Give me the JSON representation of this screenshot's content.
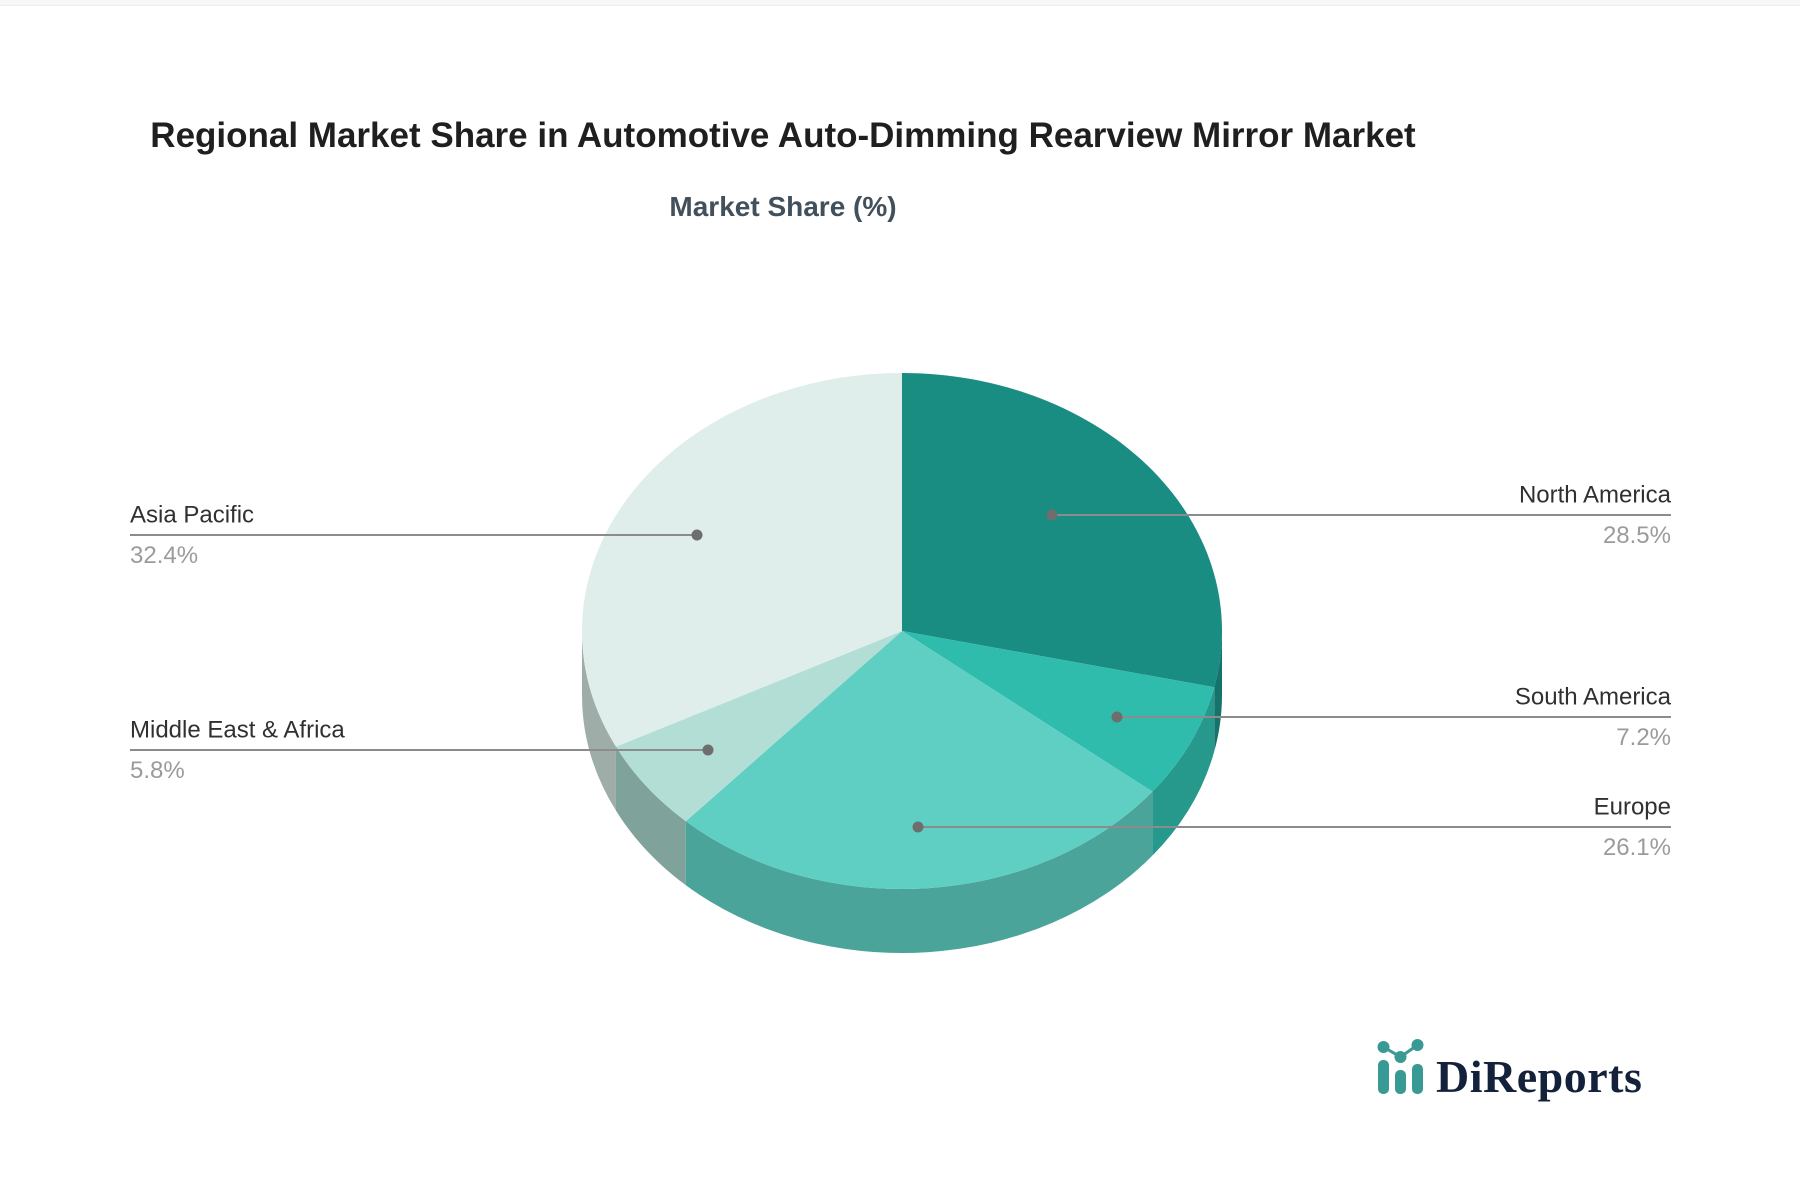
{
  "header": {
    "title": "Regional Market Share in Automotive Auto-Dimming Rearview Mirror Market",
    "subtitle": "Market Share (%)"
  },
  "brand": {
    "name": "DiReports"
  },
  "colors": {
    "background": "#ffffff",
    "title_text": "#1f1f1f",
    "subtitle_text": "#42505c",
    "label_text": "#303030",
    "value_text": "#9b9b9b",
    "leader_line": "#8c8c8c",
    "leader_dot": "#6e6e6e",
    "logo_teal": "#399a95",
    "logo_navy": "#14213a"
  },
  "chart_data": {
    "type": "pie",
    "title": "Regional Market Share in Automotive Auto-Dimming Rearview Mirror Market",
    "subtitle": "Market Share (%)",
    "unit": "%",
    "style": "3d-pie",
    "start_angle_deg": -90,
    "direction": "clockwise",
    "legend_position": "none",
    "points": [
      {
        "label": "North America",
        "value": 28.5,
        "display": "28.5%",
        "color": "#1a8d83",
        "side_color": "#15736b"
      },
      {
        "label": "South America",
        "value": 7.2,
        "display": "7.2%",
        "color": "#2fbcad",
        "side_color": "#26988c"
      },
      {
        "label": "Europe",
        "value": 26.1,
        "display": "26.1%",
        "color": "#60cfc3",
        "side_color": "#4ba49a"
      },
      {
        "label": "Middle East & Africa",
        "value": 5.8,
        "display": "5.8%",
        "color": "#b2ded6",
        "side_color": "#7fa29b"
      },
      {
        "label": "Asia Pacific",
        "value": 32.4,
        "display": "32.4%",
        "color": "#dfeeea",
        "side_color": "#9fada9"
      }
    ]
  }
}
